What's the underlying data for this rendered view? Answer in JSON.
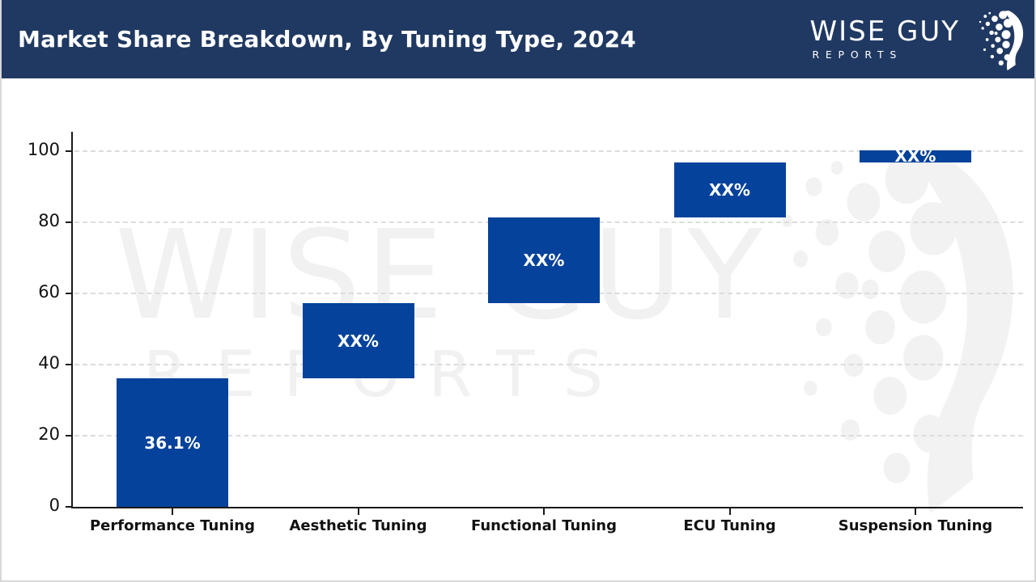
{
  "header": {
    "title": "Market Share Breakdown, By Tuning Type, 2024",
    "background_color": "#203962",
    "logo": {
      "line1": "WISE GUY",
      "line2": "REPORTS",
      "head_icon": "dotted-head-profile"
    }
  },
  "watermark": {
    "line1": "WISE GUY",
    "line2": "REPORTS",
    "head_icon": "dotted-head-profile",
    "color": "#f1f1f1"
  },
  "chart_data": {
    "type": "bar",
    "variant": "waterfall",
    "title": "Market Share Breakdown, By Tuning Type, 2024",
    "categories": [
      "Performance Tuning",
      "Aesthetic Tuning",
      "Functional Tuning",
      "ECU Tuning",
      "Suspension Tuning"
    ],
    "bars": [
      {
        "category": "Performance Tuning",
        "start": 0,
        "end": 36.1,
        "label": "36.1%"
      },
      {
        "category": "Aesthetic Tuning",
        "start": 36.1,
        "end": 57.3,
        "label": "XX%"
      },
      {
        "category": "Functional Tuning",
        "start": 57.3,
        "end": 81.4,
        "label": "XX%"
      },
      {
        "category": "ECU Tuning",
        "start": 81.4,
        "end": 96.9,
        "label": "XX%"
      },
      {
        "category": "Suspension Tuning",
        "start": 96.9,
        "end": 100.2,
        "label": "XX%"
      }
    ],
    "xlabel": "",
    "ylabel": "",
    "yticks": [
      0,
      20,
      40,
      60,
      80,
      100
    ],
    "ylim": [
      0,
      103.9
    ],
    "grid": {
      "axis": "y",
      "style": "dashed",
      "color": "#dcdcdc"
    },
    "legend": "none",
    "bar_color": "#05429B",
    "bar_label_color": "#ffffff",
    "axis_color": "#1a1a1a",
    "tick_label_color": "#111111"
  }
}
